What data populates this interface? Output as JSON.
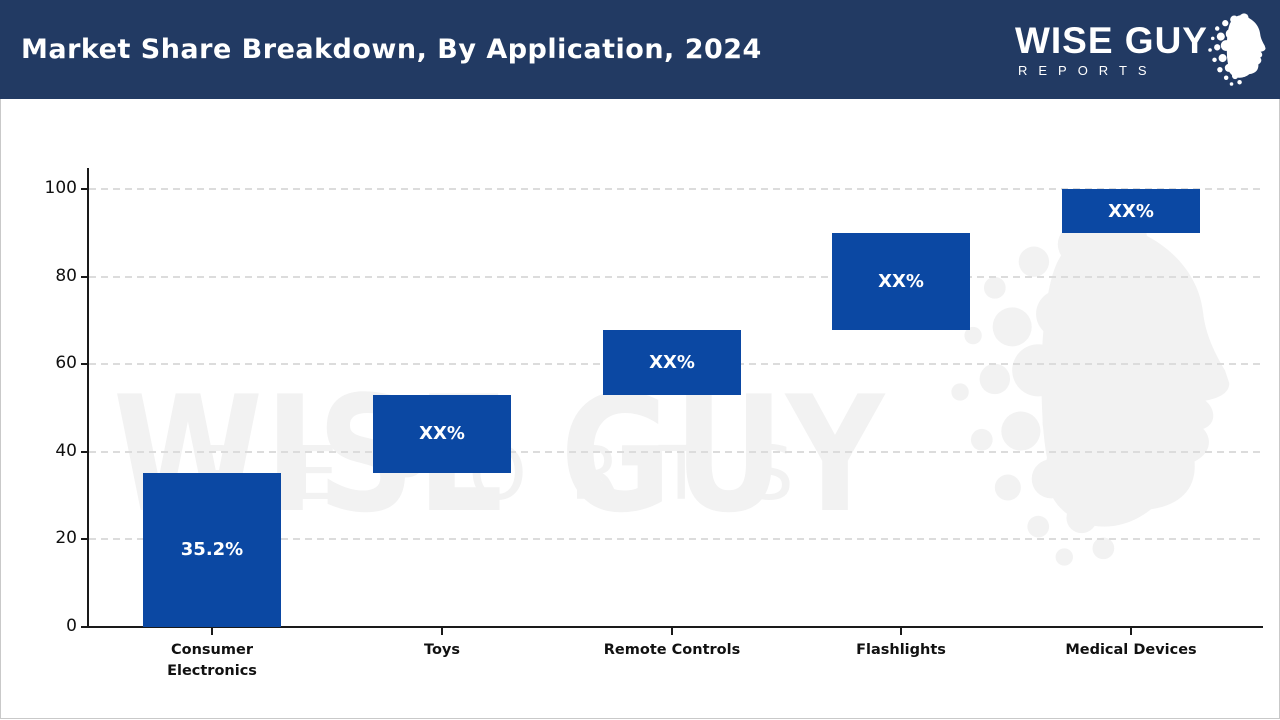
{
  "header": {
    "title": "Market Share Breakdown, By Application, 2024",
    "bg_color": "#223a63",
    "logo": {
      "wordmark": "WISE GUY",
      "subtext": "REPORTS"
    }
  },
  "watermark": {
    "line1": "WISE GUY",
    "line2": "REPORTS"
  },
  "chart_data": {
    "type": "bar",
    "subtype": "waterfall",
    "title": "Market Share Breakdown, By Application, 2024",
    "categories": [
      "Consumer\nElectronics",
      "Toys",
      "Remote Controls",
      "Flashlights",
      "Medical Devices"
    ],
    "segments": [
      {
        "category": "Consumer Electronics",
        "start": 0,
        "end": 35.2,
        "label": "35.2%"
      },
      {
        "category": "Toys",
        "start": 35.2,
        "end": 53.0,
        "label": "XX%"
      },
      {
        "category": "Remote Controls",
        "start": 53.0,
        "end": 67.8,
        "label": "XX%"
      },
      {
        "category": "Flashlights",
        "start": 67.8,
        "end": 89.9,
        "label": "XX%"
      },
      {
        "category": "Medical Devices",
        "start": 89.9,
        "end": 100.0,
        "label": "XX%"
      }
    ],
    "yticks": [
      0,
      20,
      40,
      60,
      80,
      100
    ],
    "ylim": [
      0,
      104.8
    ],
    "xlabel": "",
    "ylabel": "",
    "legend": false,
    "grid": "horizontal-dashed",
    "bar_color": "#0b48a3",
    "bar_label_color": "#ffffff",
    "axis_color": "#1a1a1a"
  }
}
